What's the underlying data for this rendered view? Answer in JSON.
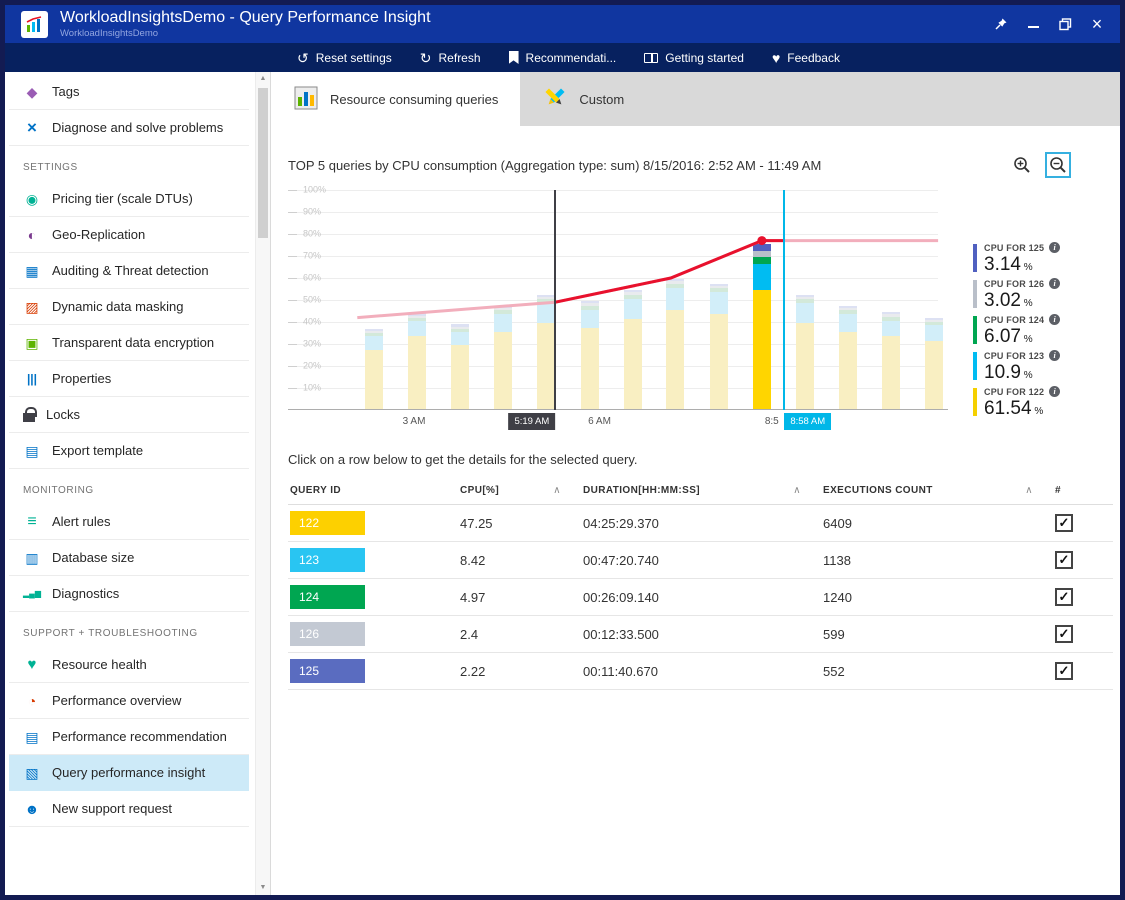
{
  "window": {
    "title": "WorkloadInsightsDemo - Query Performance Insight",
    "subtitle": "WorkloadInsightsDemo",
    "controls": [
      "pin-icon",
      "minimize-icon",
      "restore-icon",
      "close-icon"
    ]
  },
  "toolbar": {
    "items": [
      {
        "label": "Reset settings",
        "icon": "reset-settings-icon",
        "glyph": "↺"
      },
      {
        "label": "Refresh",
        "icon": "refresh-icon",
        "glyph": "↻"
      },
      {
        "label": "Recommendati...",
        "icon": "recommendations-icon",
        "glyph": "",
        "css": "bookmark"
      },
      {
        "label": "Getting started",
        "icon": "getting-started-icon",
        "glyph": "",
        "css": "book"
      },
      {
        "label": "Feedback",
        "icon": "feedback-icon",
        "glyph": "♥"
      }
    ]
  },
  "sidebar": {
    "items": [
      {
        "type": "item",
        "label": "Tags",
        "icon": {
          "name": "tag-icon",
          "glyph": "◆",
          "color": "#9a5cb4"
        }
      },
      {
        "type": "item",
        "label": "Diagnose and solve problems",
        "icon": {
          "name": "diagnose-icon",
          "glyph": "×",
          "color": "#0072c6",
          "size": 17,
          "bold": true
        }
      },
      {
        "type": "header",
        "label": "SETTINGS"
      },
      {
        "type": "item",
        "label": "Pricing tier (scale DTUs)",
        "icon": {
          "name": "pricing-tier-icon",
          "glyph": "◉",
          "color": "#00b294"
        }
      },
      {
        "type": "item",
        "label": "Geo-Replication",
        "icon": {
          "name": "geo-replication-icon",
          "glyph": "◐",
          "color": "#7a3a8e"
        }
      },
      {
        "type": "item",
        "label": "Auditing & Threat detection",
        "icon": {
          "name": "auditing-threat-icon",
          "glyph": "▦",
          "color": "#0072c6"
        }
      },
      {
        "type": "item",
        "label": "Dynamic data masking",
        "icon": {
          "name": "data-masking-icon",
          "glyph": "▨",
          "color": "#d83b01"
        }
      },
      {
        "type": "item",
        "label": "Transparent data encryption",
        "icon": {
          "name": "encryption-icon",
          "glyph": "▣",
          "color": "#5db300"
        }
      },
      {
        "type": "item",
        "label": "Properties",
        "icon": {
          "name": "properties-icon",
          "glyph": "|||",
          "color": "#0072c6",
          "size": 12,
          "bold": true
        }
      },
      {
        "type": "item",
        "label": "Locks",
        "icon": {
          "name": "lock-icon",
          "css": "lock"
        }
      },
      {
        "type": "item",
        "label": "Export template",
        "icon": {
          "name": "export-template-icon",
          "glyph": "▤",
          "color": "#0072c6"
        }
      },
      {
        "type": "header",
        "label": "MONITORING"
      },
      {
        "type": "item",
        "label": "Alert rules",
        "icon": {
          "name": "alert-rules-icon",
          "glyph": "≡",
          "color": "#00b294",
          "size": 16,
          "bold": true
        }
      },
      {
        "type": "item",
        "label": "Database size",
        "icon": {
          "name": "database-size-icon",
          "glyph": "▥",
          "color": "#0072c6"
        }
      },
      {
        "type": "item",
        "label": "Diagnostics",
        "icon": {
          "name": "diagnostics-icon",
          "glyph": "▂▄▆",
          "color": "#00b294",
          "size": 8
        }
      },
      {
        "type": "header",
        "label": "SUPPORT + TROUBLESHOOTING"
      },
      {
        "type": "item",
        "label": "Resource health",
        "icon": {
          "name": "resource-health-icon",
          "glyph": "♥",
          "color": "#00b294",
          "size": 15
        }
      },
      {
        "type": "item",
        "label": "Performance overview",
        "icon": {
          "name": "performance-overview-icon",
          "glyph": "◔",
          "color": "#d83b01"
        }
      },
      {
        "type": "item",
        "label": "Performance recommendation",
        "icon": {
          "name": "performance-recommendation-icon",
          "glyph": "▤",
          "color": "#0072c6"
        }
      },
      {
        "type": "item",
        "label": "Query performance insight",
        "selected": true,
        "icon": {
          "name": "query-performance-insight-icon",
          "glyph": "▧",
          "color": "#0072c6"
        }
      },
      {
        "type": "item",
        "label": "New support request",
        "icon": {
          "name": "new-support-request-icon",
          "glyph": "☻",
          "color": "#0072c6",
          "size": 14
        }
      }
    ]
  },
  "tabs": [
    {
      "label": "Resource consuming queries",
      "active": true
    },
    {
      "label": "Custom",
      "active": false
    }
  ],
  "zoom": {
    "icons": [
      "zoom-in-icon",
      "zoom-out-icon"
    ],
    "selected": "zoom-out"
  },
  "chart_data": {
    "type": "stacked-bar-with-line",
    "title": "TOP 5 queries by CPU consumption (Aggregation type: sum) 8/15/2016: 2:52 AM - 11:49 AM",
    "ylim": [
      0,
      100
    ],
    "yticks": [
      100,
      90,
      80,
      70,
      60,
      50,
      40,
      30,
      20,
      10
    ],
    "xticks": [
      {
        "label": "3 AM",
        "x": 0.191
      },
      {
        "label": "6 AM",
        "x": 0.472
      },
      {
        "label": "8:5",
        "x": 0.733
      }
    ],
    "markers": [
      {
        "label": "5:19 AM",
        "x": 0.405,
        "color": "#3f3f46"
      },
      {
        "label": "8:58 AM",
        "x": 0.752,
        "color": "#00b7e8"
      }
    ],
    "series_order": [
      "122",
      "123",
      "124",
      "126",
      "125"
    ],
    "series_colors": {
      "122": "#ffd500",
      "123": "#00bcf2",
      "124": "#00a651",
      "126": "#b9bfc9",
      "125": "#5060c0"
    },
    "series_dim_colors": {
      "122": "#f9efc2",
      "123": "#d2eef9",
      "124": "#d3e9da",
      "126": "#e9ebee",
      "125": "#dde1f3"
    },
    "bars": [
      {
        "x": 0.13,
        "dim": true,
        "segments": [
          27,
          6,
          1.5,
          1,
          1
        ]
      },
      {
        "x": 0.195,
        "dim": true,
        "segments": [
          33,
          7,
          1.5,
          1,
          1
        ]
      },
      {
        "x": 0.261,
        "dim": true,
        "segments": [
          29,
          6,
          1.5,
          1,
          1
        ]
      },
      {
        "x": 0.326,
        "dim": true,
        "segments": [
          35,
          8,
          2,
          1,
          1
        ]
      },
      {
        "x": 0.391,
        "dim": true,
        "segments": [
          39,
          9,
          2,
          1,
          1
        ]
      },
      {
        "x": 0.457,
        "dim": true,
        "segments": [
          37,
          8,
          2,
          1,
          1
        ]
      },
      {
        "x": 0.522,
        "dim": true,
        "segments": [
          41,
          9,
          2,
          1,
          1
        ]
      },
      {
        "x": 0.587,
        "dim": true,
        "segments": [
          45,
          10,
          2,
          1,
          1
        ]
      },
      {
        "x": 0.653,
        "dim": true,
        "segments": [
          43,
          10,
          2,
          1,
          1
        ]
      },
      {
        "x": 0.718,
        "dim": false,
        "segments": [
          54,
          12,
          3,
          3,
          3
        ]
      },
      {
        "x": 0.783,
        "dim": true,
        "segments": [
          39,
          9,
          2,
          1,
          1
        ]
      },
      {
        "x": 0.849,
        "dim": true,
        "segments": [
          35,
          8,
          2,
          1,
          1
        ]
      },
      {
        "x": 0.914,
        "dim": true,
        "segments": [
          33,
          7,
          2,
          1,
          1
        ]
      },
      {
        "x": 0.979,
        "dim": true,
        "segments": [
          31,
          7,
          1.5,
          1,
          1
        ]
      }
    ],
    "line": {
      "points": [
        [
          0.105,
          42
        ],
        [
          0.405,
          49
        ],
        [
          0.58,
          60
        ],
        [
          0.718,
          77
        ],
        [
          0.752,
          77
        ],
        [
          0.985,
          77
        ]
      ],
      "active_from": 0.405,
      "active_to": 0.752,
      "dot": [
        0.718,
        77
      ],
      "color": "#e8112d",
      "dim_color": "#f2aebc"
    },
    "legend": [
      {
        "label": "CPU FOR 125",
        "value": "3.14",
        "unit": "%",
        "color": "#5060c0"
      },
      {
        "label": "CPU FOR 126",
        "value": "3.02",
        "unit": "%",
        "color": "#b9bfc9"
      },
      {
        "label": "CPU FOR 124",
        "value": "6.07",
        "unit": "%",
        "color": "#00a651"
      },
      {
        "label": "CPU FOR 123",
        "value": "10.9",
        "unit": "%",
        "color": "#00bcf2"
      },
      {
        "label": "CPU FOR 122",
        "value": "61.54",
        "unit": "%",
        "color": "#f5d000"
      }
    ]
  },
  "hint": "Click on a row below to get the details for the selected query.",
  "table": {
    "columns": [
      {
        "label": "QUERY ID",
        "sort": false
      },
      {
        "label": "CPU[%]",
        "sort": true
      },
      {
        "label": "DURATION[HH:MM:SS]",
        "sort": true
      },
      {
        "label": "EXECUTIONS COUNT",
        "sort": true
      },
      {
        "label": "#",
        "sort": false
      }
    ],
    "rows": [
      {
        "id": "122",
        "color": "#fdd000",
        "cpu": "47.25",
        "duration": "04:25:29.370",
        "executions": "6409",
        "checked": true
      },
      {
        "id": "123",
        "color": "#29c5f2",
        "cpu": "8.42",
        "duration": "00:47:20.740",
        "executions": "1138",
        "checked": true
      },
      {
        "id": "124",
        "color": "#00a651",
        "cpu": "4.97",
        "duration": "00:26:09.140",
        "executions": "1240",
        "checked": true
      },
      {
        "id": "126",
        "color": "#c3c9d3",
        "cpu": "2.4",
        "duration": "00:12:33.500",
        "executions": "599",
        "checked": true
      },
      {
        "id": "125",
        "color": "#5a6cc0",
        "cpu": "2.22",
        "duration": "00:11:40.670",
        "executions": "552",
        "checked": true
      }
    ]
  }
}
